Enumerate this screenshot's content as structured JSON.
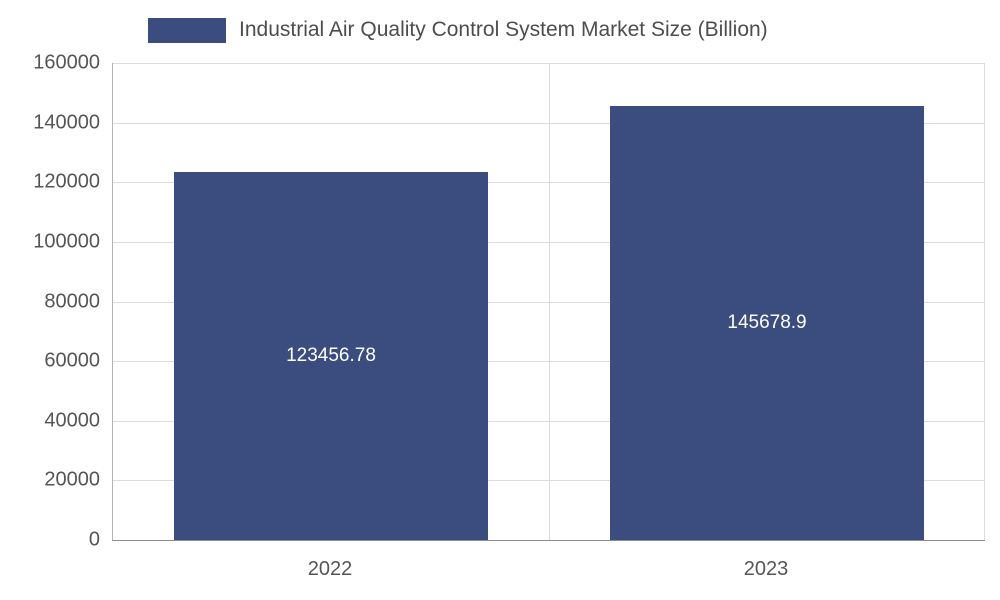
{
  "chart_data": {
    "type": "bar",
    "title": "Industrial Air Quality Control System Market Size (Billion)",
    "categories": [
      "2022",
      "2023"
    ],
    "values": [
      123456.78,
      145678.9
    ],
    "value_labels": [
      "123456.78",
      "145678.9"
    ],
    "ylim": [
      0,
      160000
    ],
    "ytick_step": 20000,
    "yticks": [
      0,
      20000,
      40000,
      60000,
      80000,
      100000,
      120000,
      140000,
      160000
    ],
    "xlabel": "",
    "ylabel": "",
    "grid": true,
    "legend_position": "top",
    "bar_color": "#3B4D7F",
    "bar_label_color": "#ffffff",
    "bar_width_fraction": 0.72
  }
}
